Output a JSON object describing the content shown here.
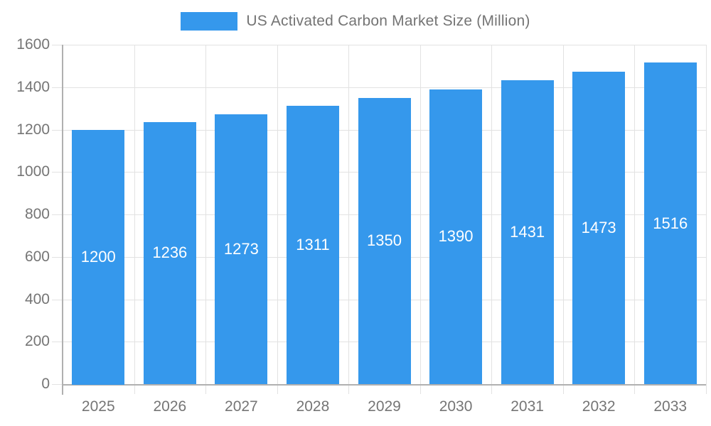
{
  "legend": {
    "label": "US Activated Carbon Market Size (Million)"
  },
  "chart_data": {
    "type": "bar",
    "title": "US Activated Carbon Market Size (Million)",
    "series_name": "US Activated Carbon Market Size (Million)",
    "categories": [
      "2025",
      "2026",
      "2027",
      "2028",
      "2029",
      "2030",
      "2031",
      "2032",
      "2033"
    ],
    "values": [
      1200,
      1236,
      1273,
      1311,
      1350,
      1390,
      1431,
      1473,
      1516
    ],
    "bar_labels": [
      "1200",
      "1236",
      "1273",
      "1311",
      "1350",
      "1390",
      "1431",
      "1473",
      "1516"
    ],
    "xlabel": "",
    "ylabel": "",
    "ylim": [
      0,
      1600
    ],
    "yticks": [
      0,
      200,
      400,
      600,
      800,
      1000,
      1200,
      1400,
      1600
    ],
    "grid": true,
    "legend_position": "top-center",
    "colors": {
      "bar": "#3598ec",
      "bar_label_text": "#ffffff",
      "axis_line": "#b0b0b0",
      "grid_line": "#e2e2e2",
      "tick_text": "#757575",
      "legend_text": "#747474",
      "background": "#ffffff"
    }
  }
}
